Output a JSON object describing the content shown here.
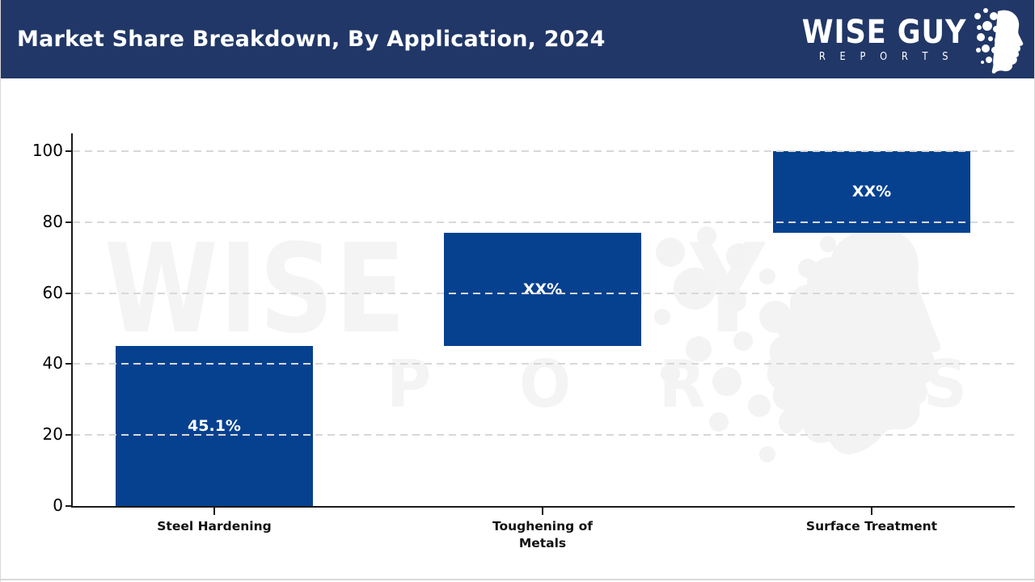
{
  "header": {
    "title": "Market Share Breakdown, By Application, 2024",
    "bg_color": "#213767",
    "logo": {
      "line1": "WISE GUY",
      "line2": "R E P O R T S"
    }
  },
  "watermark": {
    "line1": "WISE G U Y",
    "line2": "R E P O R T S",
    "color": "#f4f4f4"
  },
  "chart_data": {
    "type": "bar",
    "subtype": "waterfall-stacked-breakdown",
    "title": "Market Share Breakdown, By Application, 2024",
    "categories": [
      "Steel Hardening",
      "Toughening of\nMetals",
      "Surface Treatment"
    ],
    "segments": [
      {
        "category": "Steel Hardening",
        "start": 0,
        "end": 45.1,
        "label": "45.1%"
      },
      {
        "category": "Toughening of Metals",
        "start": 45.1,
        "end": 77,
        "label": "XX%"
      },
      {
        "category": "Surface Treatment",
        "start": 77,
        "end": 100,
        "label": "XX%"
      }
    ],
    "yticks": [
      0,
      20,
      40,
      60,
      80,
      100
    ],
    "ylim": [
      0,
      100
    ],
    "xlabel": "",
    "ylabel": "",
    "grid": "horizontal-dashed",
    "legend": "none",
    "bar_color": "#05418f",
    "bar_label_color": "#ffffff",
    "grid_color": "#d8d8d8",
    "axis_color": "#1a1a1a"
  }
}
